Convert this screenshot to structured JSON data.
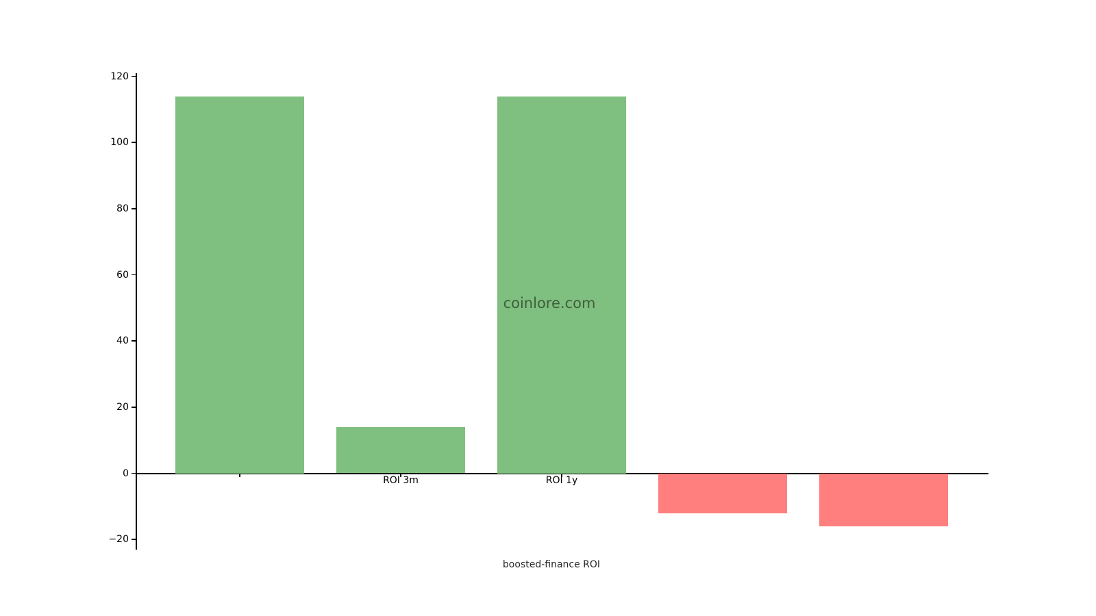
{
  "chart_data": {
    "type": "bar",
    "title": "boosted-finance ROI",
    "watermark": "coinlore.com",
    "categories": [
      "",
      "ROI 3m",
      "ROI 1y",
      "",
      ""
    ],
    "values": [
      114,
      14,
      114,
      -12,
      -16
    ],
    "bar_colors": [
      "#7fbf7f",
      "#7fbf7f",
      "#7fbf7f",
      "#ff7f7f",
      "#ff7f7f"
    ],
    "positive_color": "#7fbf7f",
    "negative_color": "#ff7f7f",
    "yticks": [
      120,
      100,
      80,
      60,
      40,
      20,
      0,
      -20
    ],
    "ylim": [
      -23,
      121
    ],
    "xlabel": "",
    "ylabel": "",
    "grid": false,
    "legend_position": "none",
    "axis_color": "#000000",
    "watermark_color": "#3f5f3f",
    "x_tick_visible": [
      true,
      true,
      true,
      false,
      false
    ]
  }
}
